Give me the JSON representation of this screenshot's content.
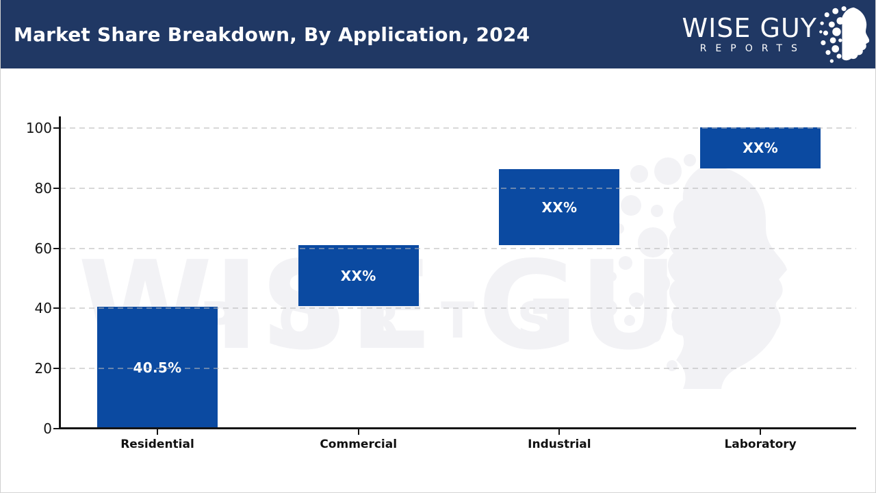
{
  "header": {
    "title": "Market Share Breakdown, By Application, 2024",
    "logo": {
      "line1": "WISE GUY",
      "line2": "REPORTS"
    }
  },
  "watermark": {
    "line1": "WISE GUY",
    "line2": "PORTS"
  },
  "chart_data": {
    "type": "bar",
    "subtype": "waterfall",
    "title": "Market Share Breakdown, By Application, 2024",
    "categories": [
      "Residential",
      "Commercial",
      "Industrial",
      "Laboratory"
    ],
    "segments": [
      {
        "category": "Residential",
        "from": 0,
        "to": 40.5,
        "label": "40.5%"
      },
      {
        "category": "Commercial",
        "from": 40.7,
        "to": 61.0,
        "label": "XX%"
      },
      {
        "category": "Industrial",
        "from": 61.0,
        "to": 86.3,
        "label": "XX%"
      },
      {
        "category": "Laboratory",
        "from": 86.6,
        "to": 100.2,
        "label": "XX%"
      }
    ],
    "ylim": [
      0,
      100
    ],
    "yticks": [
      0,
      20,
      40,
      60,
      80,
      100
    ],
    "xlabel": "",
    "ylabel": "",
    "grid": "horizontal-dashed",
    "legend": "none",
    "bar_color": "#0b4aa1",
    "bar_label_color": "#ffffff",
    "axis_color": "#141414",
    "gridline_color": "#d5d5d5"
  },
  "colors": {
    "header_bg": "#203864",
    "bar": "#0b4aa1",
    "watermark": "#f2f2f5"
  }
}
